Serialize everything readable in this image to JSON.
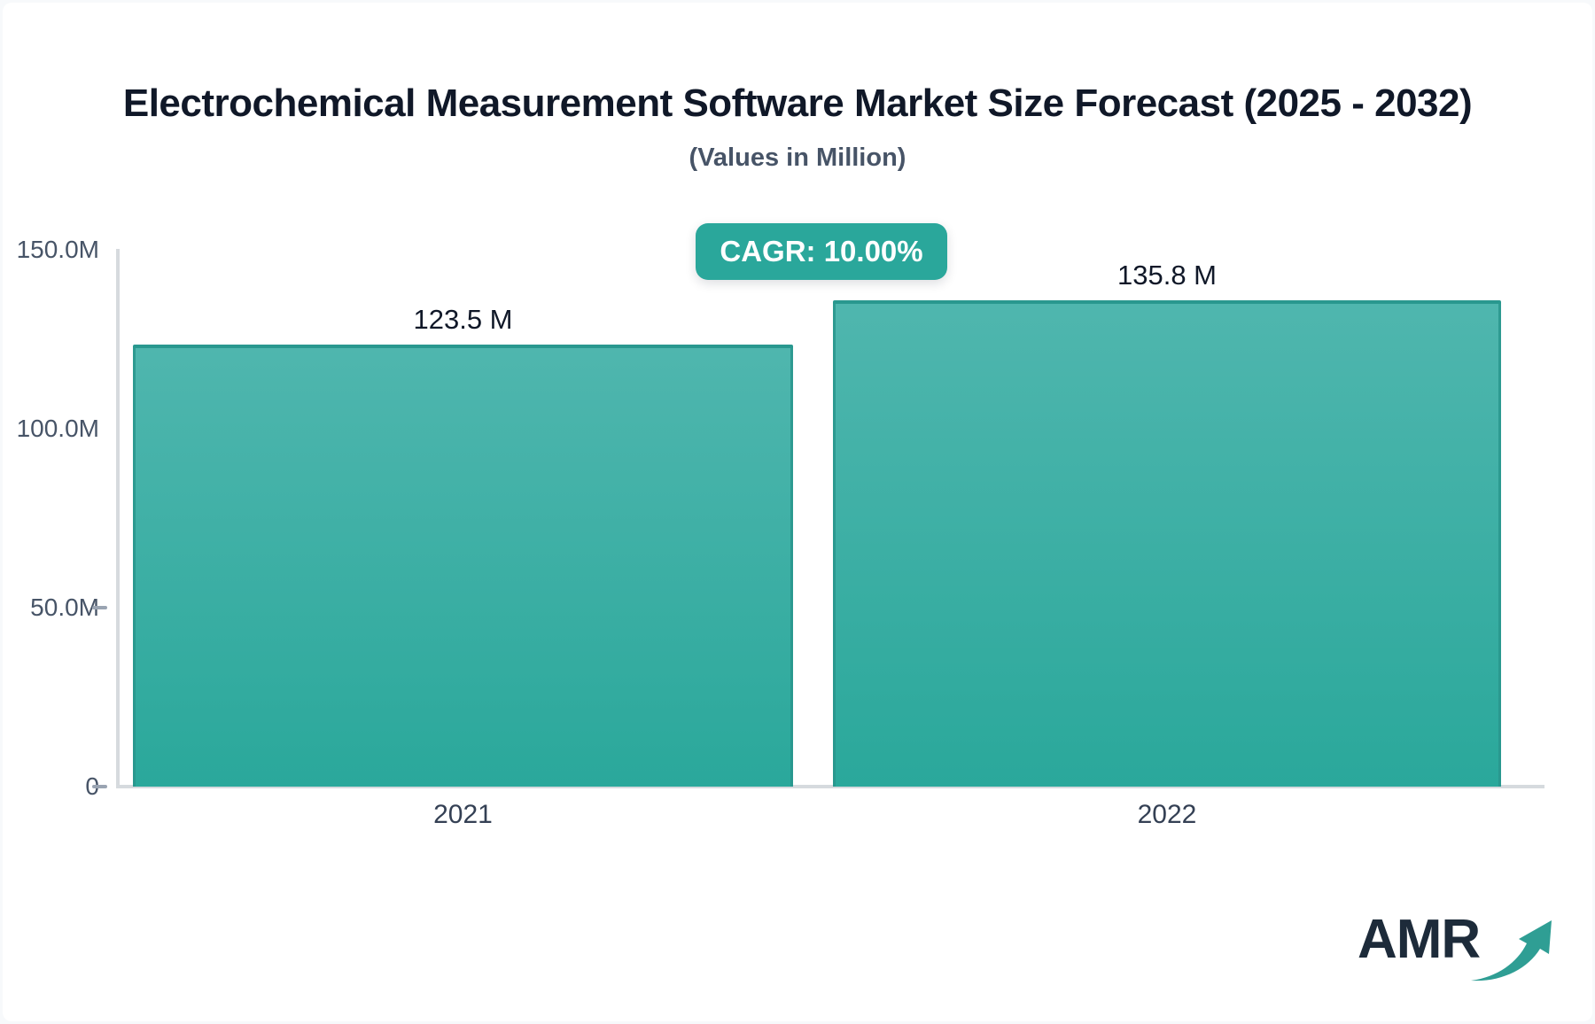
{
  "page": {
    "title": "Electrochemical Measurement Software Market Size Forecast (2025 - 2032)",
    "subtitle": "(Values in Million)",
    "cagr_badge": "CAGR: 10.00%",
    "logo_text": "AMR"
  },
  "colors": {
    "badge_bg": "#2aa79b",
    "bar_gradient_top": "#4fb6ae",
    "bar_gradient_bottom": "#2aa89b",
    "bar_border": "#29968d",
    "axis_line": "#d6dade",
    "tick_dash": "#9aa4b2",
    "title_text": "#101828",
    "subtitle_text": "#475467",
    "axis_label_text": "#475467",
    "value_label_text": "#101828",
    "logo_text_color": "#1d2b3a",
    "logo_arrow_color": "#2f9e94"
  },
  "chart_data": {
    "type": "bar",
    "title": "Electrochemical Measurement Software Market Size Forecast (2025 - 2032)",
    "subtitle": "(Values in Million)",
    "cagr": "10.00%",
    "categories": [
      "2021",
      "2022"
    ],
    "values": [
      123.5,
      135.8
    ],
    "value_labels": [
      "123.5 M",
      "135.8 M"
    ],
    "ylim": [
      0,
      150
    ],
    "yticks": [
      {
        "label": "150.0M",
        "value": 150,
        "dash": false
      },
      {
        "label": "100.0M",
        "value": 100,
        "dash": false
      },
      {
        "label": "50.0M",
        "value": 50,
        "dash": true
      },
      {
        "label": "0",
        "value": 0,
        "dash": true
      }
    ],
    "grid": false,
    "legend": false,
    "bar_label_position": "above-bar-center"
  }
}
